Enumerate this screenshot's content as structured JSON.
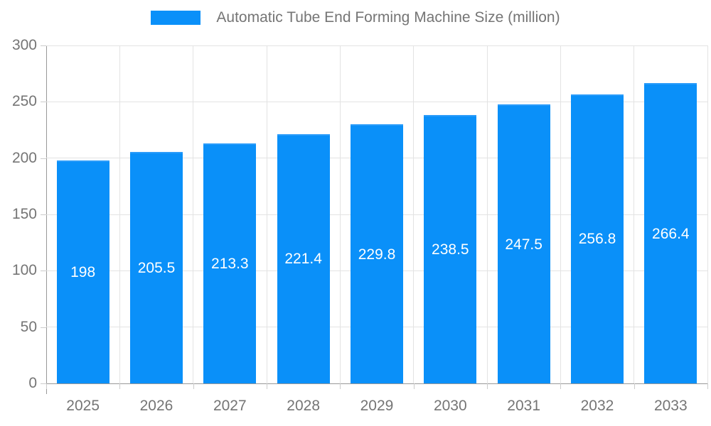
{
  "legend": {
    "label": "Automatic Tube End Forming Machine Size (million)",
    "swatch_color": "#0a90f9"
  },
  "colors": {
    "bar": "#0a90f9",
    "grid": "#e3e3e3",
    "axis": "#999999",
    "tick": "#cccccc",
    "text": "#757575",
    "bar_label": "#ffffff"
  },
  "chart_data": {
    "type": "bar",
    "title": "Automatic Tube End Forming Machine Size (million)",
    "categories": [
      "2025",
      "2026",
      "2027",
      "2028",
      "2029",
      "2030",
      "2031",
      "2032",
      "2033"
    ],
    "values": [
      198,
      205.5,
      213.3,
      221.4,
      229.8,
      238.5,
      247.5,
      256.8,
      266.4
    ],
    "value_labels": [
      "198",
      "205.5",
      "213.3",
      "221.4",
      "229.8",
      "238.5",
      "247.5",
      "256.8",
      "266.4"
    ],
    "xlabel": "",
    "ylabel": "",
    "ylim": [
      0,
      300
    ],
    "y_ticks": [
      0,
      50,
      100,
      150,
      200,
      250,
      300
    ],
    "grid": true,
    "legend_position": "top-center"
  }
}
